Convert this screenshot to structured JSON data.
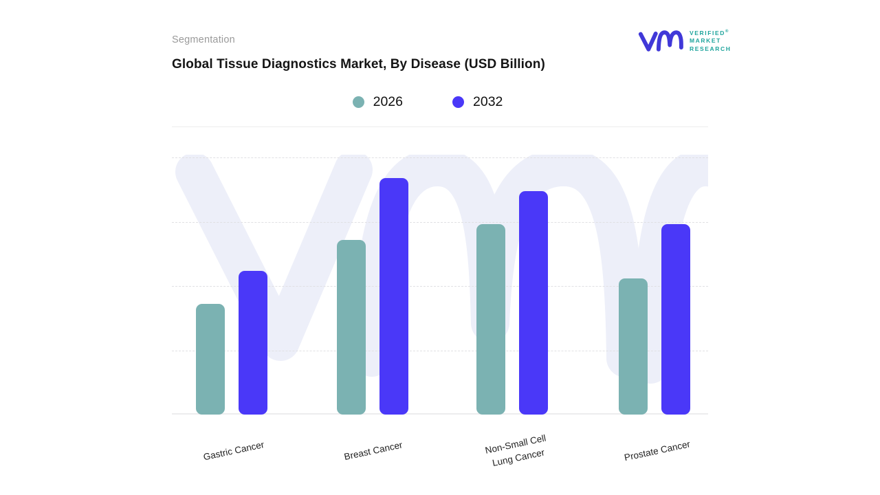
{
  "header": {
    "eyebrow": "Segmentation",
    "title": "Global Tissue Diagnostics Market, By Disease (USD Billion)"
  },
  "logo": {
    "line1": "VERIFIED",
    "line2": "MARKET",
    "line3": "RESEARCH",
    "registered_mark": "®",
    "monogram_color": "#4038d8",
    "text_color": "#1ea49c"
  },
  "chart_data": {
    "type": "bar",
    "title": "Global Tissue Diagnostics Market, By Disease (USD Billion)",
    "xlabel": "",
    "ylabel": "",
    "categories": [
      "Gastric Cancer",
      "Breast Cancer",
      "Non-Small Cell\nLung Cancer",
      "Prostate Cancer"
    ],
    "series": [
      {
        "name": "2026",
        "color": "#7bb2b2",
        "values": [
          43,
          68,
          74,
          53
        ]
      },
      {
        "name": "2032",
        "color": "#4a38f8",
        "values": [
          56,
          92,
          87,
          74
        ]
      }
    ],
    "ylim": [
      0,
      101
    ],
    "yticks": [
      25,
      50,
      75,
      100
    ],
    "y_axis_labels_visible": false,
    "grid": "horizontal-dashed",
    "legend_position": "top-center",
    "note": "No numeric axis shown; values estimated from gridlines (gridline step = 25 units)"
  },
  "watermark": {
    "name": "vmr-ghost-monogram",
    "color": "#edeff9"
  }
}
